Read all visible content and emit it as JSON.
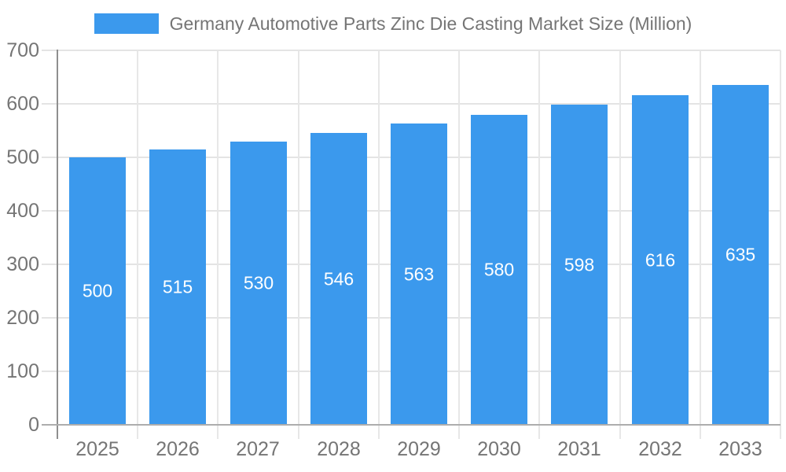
{
  "legend": {
    "swatch_color": "#3B99ED"
  },
  "chart_data": {
    "type": "bar",
    "title": "Germany Automotive Parts Zinc Die Casting Market Size (Million)",
    "series_name": "Germany Automotive Parts Zinc Die Casting Market Size (Million)",
    "categories": [
      "2025",
      "2026",
      "2027",
      "2028",
      "2029",
      "2030",
      "2031",
      "2032",
      "2033"
    ],
    "values": [
      500,
      515,
      530,
      546,
      563,
      580,
      598,
      616,
      635
    ],
    "xlabel": "",
    "ylabel": "",
    "ylim": [
      0,
      700
    ],
    "ytick_interval": 100,
    "ytick_labels": [
      "0",
      "100",
      "200",
      "300",
      "400",
      "500",
      "600",
      "700"
    ],
    "grid": true,
    "legend_position": "top-center",
    "value_labels": "inside-center-white",
    "bar_color": "#3B99ED",
    "value_label_color": "#FFFFFF",
    "axis_label_color": "#757575",
    "gridline_color": "#E4E4E4",
    "y_axis_line_color": "#8F8F8F",
    "x_axis_line_color": "#ADADAD",
    "background_color": "#FFFFFF"
  }
}
